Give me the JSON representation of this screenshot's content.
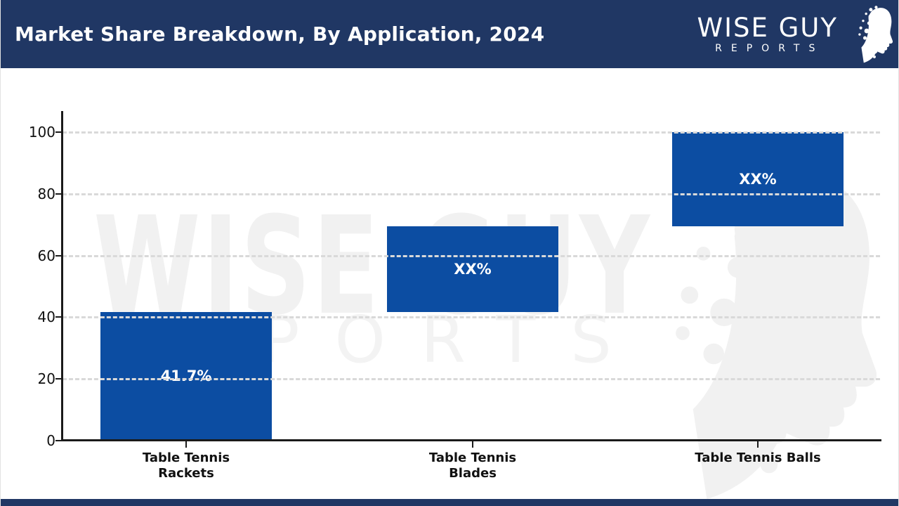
{
  "header": {
    "title": "Market Share Breakdown, By Application, 2024",
    "logo_line1": "WISE GUY",
    "logo_line2": "REPORTS"
  },
  "watermark": {
    "line1": "WISE GUY",
    "line2": "REPORTS"
  },
  "chart_data": {
    "type": "bar",
    "subtype": "floating-stacked-percentage",
    "title": "Market Share Breakdown, By Application, 2024",
    "categories": [
      "Table Tennis Rackets",
      "Table Tennis Blades",
      "Table Tennis Balls"
    ],
    "category_label_lines": [
      [
        "Table Tennis",
        "Rackets"
      ],
      [
        "Table Tennis",
        "Blades"
      ],
      [
        "Table Tennis Balls"
      ]
    ],
    "bars": [
      {
        "category": "Table Tennis Rackets",
        "start": 0,
        "end": 41.7,
        "label": "41.7%"
      },
      {
        "category": "Table Tennis Blades",
        "start": 41.7,
        "end": 69.5,
        "label": "XX%"
      },
      {
        "category": "Table Tennis Balls",
        "start": 69.5,
        "end": 100,
        "label": "XX%"
      }
    ],
    "yticks": [
      0,
      20,
      40,
      60,
      80,
      100
    ],
    "ylim": [
      0,
      106
    ],
    "grid": true,
    "legend": false,
    "bar_color": "#0c4da2",
    "grid_color": "#d9d9d9",
    "axis_color": "#1a1a1a",
    "bar_label_color": "#ffffff"
  },
  "colors": {
    "header_bg": "#203764",
    "watermark": "#f1f1f1"
  }
}
